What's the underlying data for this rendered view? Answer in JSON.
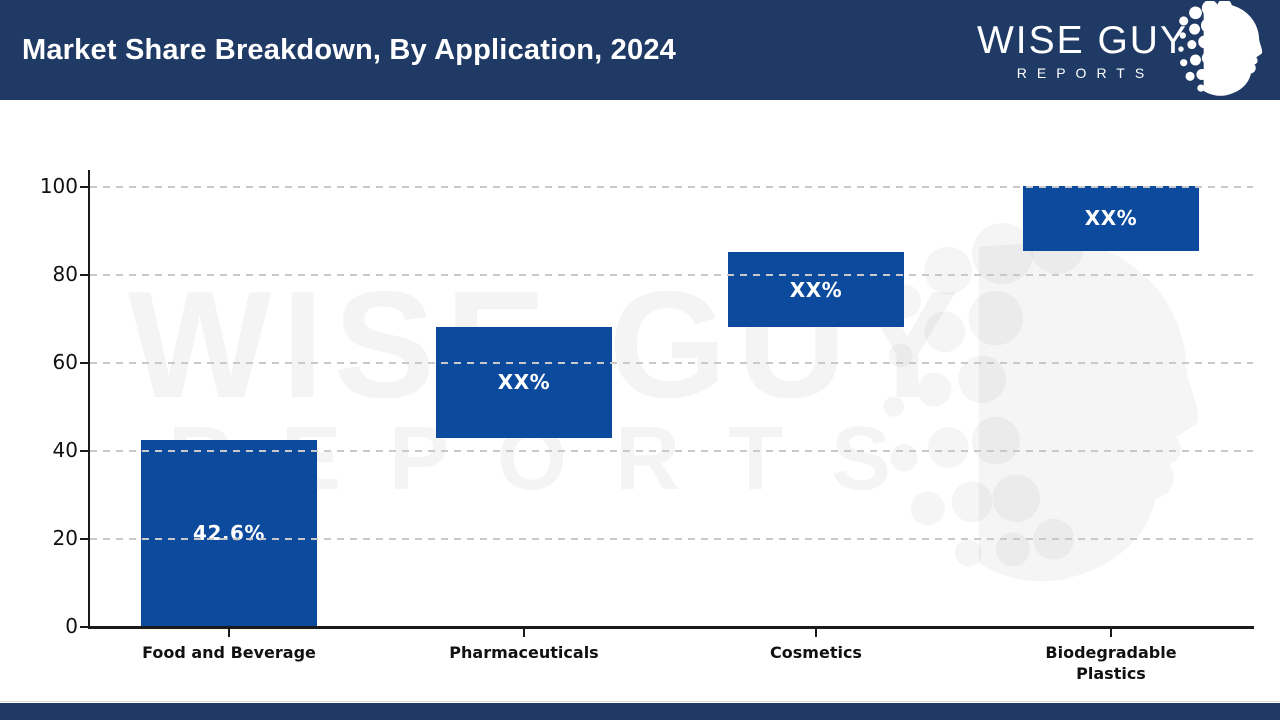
{
  "header": {
    "title": "Market Share Breakdown, By Application, 2024"
  },
  "logo": {
    "line1": "WISE GUY",
    "line2": "REPORTS",
    "head_icon": "dotted-head-profile"
  },
  "watermark": {
    "line1": "WISE GUY",
    "line2": "REPORTS",
    "head_icon": "dotted-head-profile"
  },
  "colors": {
    "header_bg": "#203a66",
    "footer_bg": "#203a66",
    "bar_fill": "#0c4a9e",
    "bar_label_text": "#ffffff",
    "axis": "#1a1a1a",
    "gridline": "#c9c9c9",
    "title_text": "#ffffff",
    "tick_text": "#111111"
  },
  "chart_data": {
    "type": "bar",
    "subtype": "waterfall",
    "title": "Market Share Breakdown, By Application, 2024",
    "xlabel": "",
    "ylabel": "",
    "ylim": [
      0,
      104
    ],
    "yticks": [
      0,
      20,
      40,
      60,
      80,
      100
    ],
    "grid": "dashed horizontal, drawn over bars",
    "legend": "none",
    "categories": [
      "Food and Beverage",
      "Pharmaceuticals",
      "Cosmetics",
      "Biodegradable Plastics"
    ],
    "segments": [
      {
        "category": "Food and Beverage",
        "start": 0,
        "end": 42.6,
        "label": "42.6%"
      },
      {
        "category": "Pharmaceuticals",
        "start": 43.0,
        "end": 68.2,
        "label": "XX%"
      },
      {
        "category": "Cosmetics",
        "start": 68.2,
        "end": 85.2,
        "label": "XX%"
      },
      {
        "category": "Biodegradable Plastics",
        "start": 85.5,
        "end": 100.3,
        "label": "XX%"
      }
    ]
  }
}
